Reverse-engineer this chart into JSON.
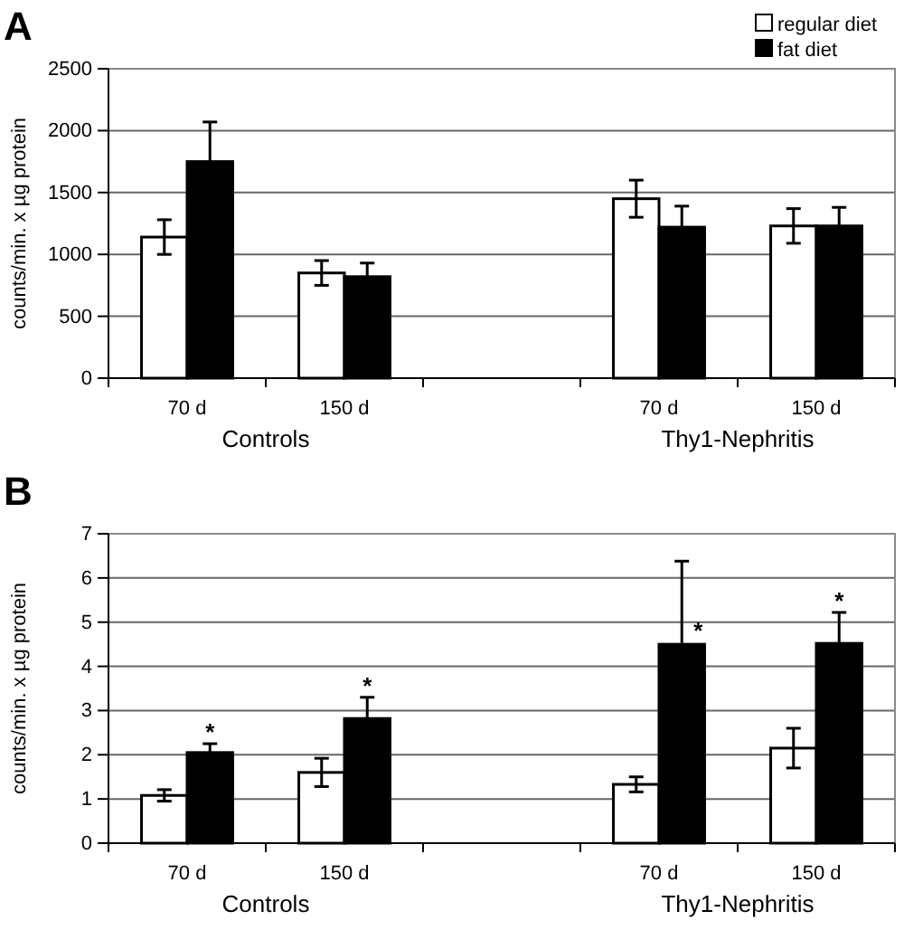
{
  "chart_data": [
    {
      "type": "bar",
      "title": "A",
      "ylabel": "counts/min. x µg protein",
      "categories": [
        "70 d",
        "150 d",
        null,
        "70 d",
        "150 d"
      ],
      "series": [
        {
          "name": "regular diet",
          "color": "#ffffff",
          "values": [
            1140,
            850,
            null,
            1450,
            1230
          ],
          "errors": [
            140,
            100,
            null,
            150,
            140
          ]
        },
        {
          "name": "fat diet",
          "color": "#000000",
          "values": [
            1750,
            820,
            null,
            1220,
            1230
          ],
          "errors": [
            320,
            110,
            null,
            170,
            150
          ]
        }
      ],
      "ylim": [
        0,
        2500
      ],
      "yticks": [
        0,
        500,
        1000,
        1500,
        2000,
        2500
      ],
      "grid": "y",
      "legend": "top right",
      "annotations": [
        "Controls",
        "Thy1-Nephritis"
      ]
    },
    {
      "type": "bar",
      "title": "B",
      "ylabel": "counts/min. x µg protein",
      "categories": [
        "70 d",
        "150 d",
        null,
        "70 d",
        "150 d"
      ],
      "series": [
        {
          "color": "#ffffff",
          "values": [
            1.08,
            1.6,
            null,
            1.33,
            2.15
          ],
          "errors": [
            0.13,
            0.32,
            null,
            0.17,
            0.45
          ]
        },
        {
          "color": "#000000",
          "values": [
            2.05,
            2.82,
            null,
            4.5,
            4.52
          ],
          "errors": [
            0.2,
            0.48,
            null,
            1.88,
            0.7
          ],
          "value_labels": [
            "*",
            "*",
            null,
            "*",
            "*"
          ]
        }
      ],
      "ylim": [
        0,
        7
      ],
      "yticks": [
        0,
        1,
        2,
        3,
        4,
        5,
        6,
        7
      ],
      "grid": "y",
      "legend": false,
      "annotations": [
        "Controls",
        "Thy1-Nephritis"
      ]
    }
  ]
}
